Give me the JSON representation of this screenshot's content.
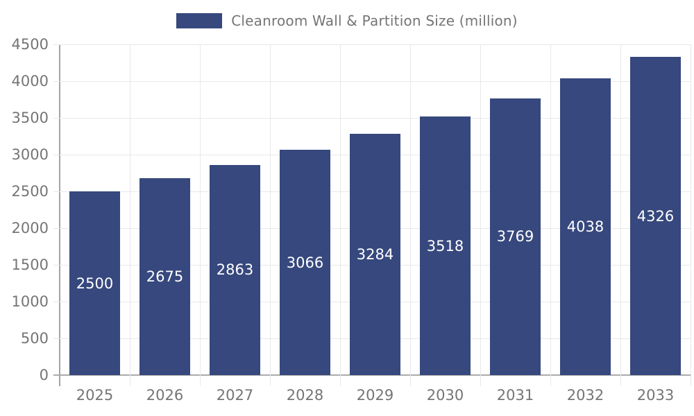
{
  "legend": {
    "label": "Cleanroom Wall & Partition Size (million)"
  },
  "chart_data": {
    "type": "bar",
    "title": "",
    "xlabel": "",
    "ylabel": "",
    "categories": [
      "2025",
      "2026",
      "2027",
      "2028",
      "2029",
      "2030",
      "2031",
      "2032",
      "2033"
    ],
    "series": [
      {
        "name": "Cleanroom Wall & Partition Size (million)",
        "values": [
          2500,
          2675,
          2863,
          3066,
          3284,
          3518,
          3769,
          4038,
          4326
        ]
      }
    ],
    "data_labels_shown": true,
    "ylim": [
      0,
      4500
    ],
    "ytick_step": 500,
    "yticks": [
      0,
      500,
      1000,
      1500,
      2000,
      2500,
      3000,
      3500,
      4000,
      4500
    ],
    "grid": true,
    "legend_position": "top-center",
    "colors": {
      "bar": "#36487D",
      "bar_label": "#ffffff",
      "axis_text": "#757575",
      "legend_text": "#757575",
      "gridline": "#e8e8e8",
      "axis_line": "#a3a3a3",
      "background": "#ffffff"
    }
  }
}
